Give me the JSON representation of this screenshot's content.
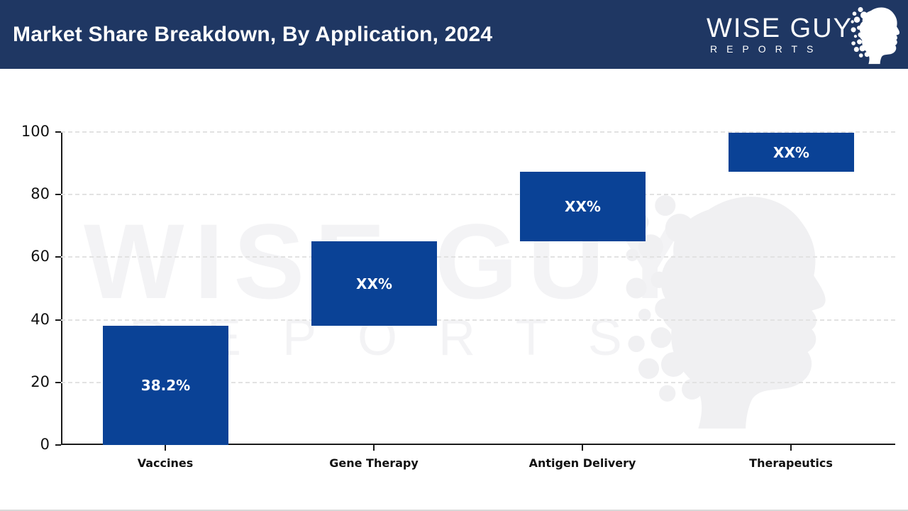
{
  "header": {
    "title": "Market Share Breakdown, By Application, 2024",
    "bg_color": "#1f3763",
    "logo": {
      "line1": "WISE GUY",
      "line2": "REPORTS"
    }
  },
  "watermark": {
    "line1": "WISE GUY",
    "line2": "REPORTS"
  },
  "chart_data": {
    "type": "bar",
    "subtype": "waterfall",
    "title": "Market Share Breakdown, By Application, 2024",
    "categories": [
      "Vaccines",
      "Gene Therapy",
      "Antigen Delivery",
      "Therapeutics"
    ],
    "series": [
      {
        "name": "Market Share",
        "segments": [
          {
            "start": 0,
            "end": 38.2
          },
          {
            "start": 38.2,
            "end": 65.1
          },
          {
            "start": 65.1,
            "end": 87.3
          },
          {
            "start": 87.3,
            "end": 99.8
          }
        ]
      }
    ],
    "bar_labels": [
      "38.2%",
      "XX%",
      "XX%",
      "XX%"
    ],
    "xlabel": "",
    "ylabel": "",
    "ylim": [
      0,
      100
    ],
    "yticks": [
      0,
      20,
      40,
      60,
      80,
      100
    ],
    "grid": "horizontal-dashed",
    "legend": "none",
    "bar_color": "#0a4296",
    "bar_label_color": "#ffffff",
    "axis_color": "#1a1a1a",
    "gridline_color": "#e2e2e2"
  }
}
